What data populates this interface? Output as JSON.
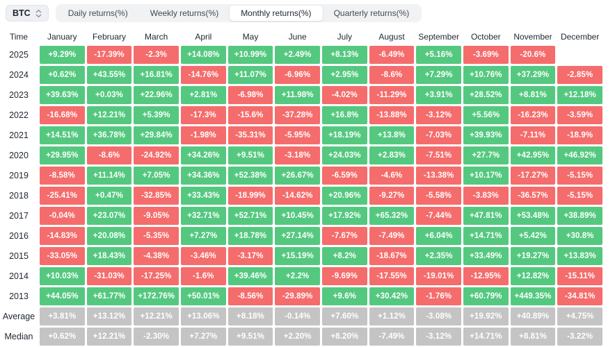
{
  "colors": {
    "positive": "#55c880",
    "negative": "#f56c6c",
    "neutral": "#c4c4c4",
    "cell_text": "#ffffff",
    "text_dark": "#1e2631",
    "tab_text": "#424a54",
    "tab_bar_bg": "#f1f2f4",
    "active_tab_bg": "#ffffff",
    "coin_bg": "#eef0f3",
    "coin_border": "#e2e5ea"
  },
  "toolbar": {
    "coin_selector": {
      "label": "BTC",
      "icon": "up-down-chevron-icon"
    },
    "tabs": [
      {
        "label": "Daily returns(%)",
        "active": false
      },
      {
        "label": "Weekly returns(%)",
        "active": false
      },
      {
        "label": "Monthly returns(%)",
        "active": true
      },
      {
        "label": "Quarterly returns(%)",
        "active": false
      }
    ]
  },
  "table": {
    "time_header": "Time",
    "month_headers": [
      "January",
      "February",
      "March",
      "April",
      "May",
      "June",
      "July",
      "August",
      "September",
      "October",
      "November",
      "December"
    ],
    "rows": [
      {
        "label": "2025",
        "type": "year",
        "values": [
          "+9.29%",
          "-17.39%",
          "-2.3%",
          "+14.08%",
          "+10.99%",
          "+2.49%",
          "+8.13%",
          "-6.49%",
          "+5.16%",
          "-3.69%",
          "-20.6%",
          null
        ]
      },
      {
        "label": "2024",
        "type": "year",
        "values": [
          "+0.62%",
          "+43.55%",
          "+16.81%",
          "-14.76%",
          "+11.07%",
          "-6.96%",
          "+2.95%",
          "-8.6%",
          "+7.29%",
          "+10.76%",
          "+37.29%",
          "-2.85%"
        ]
      },
      {
        "label": "2023",
        "type": "year",
        "values": [
          "+39.63%",
          "+0.03%",
          "+22.96%",
          "+2.81%",
          "-6.98%",
          "+11.98%",
          "-4.02%",
          "-11.29%",
          "+3.91%",
          "+28.52%",
          "+8.81%",
          "+12.18%"
        ]
      },
      {
        "label": "2022",
        "type": "year",
        "values": [
          "-16.68%",
          "+12.21%",
          "+5.39%",
          "-17.3%",
          "-15.6%",
          "-37.28%",
          "+16.8%",
          "-13.88%",
          "-3.12%",
          "+5.56%",
          "-16.23%",
          "-3.59%"
        ]
      },
      {
        "label": "2021",
        "type": "year",
        "values": [
          "+14.51%",
          "+36.78%",
          "+29.84%",
          "-1.98%",
          "-35.31%",
          "-5.95%",
          "+18.19%",
          "+13.8%",
          "-7.03%",
          "+39.93%",
          "-7.11%",
          "-18.9%"
        ]
      },
      {
        "label": "2020",
        "type": "year",
        "values": [
          "+29.95%",
          "-8.6%",
          "-24.92%",
          "+34.26%",
          "+9.51%",
          "-3.18%",
          "+24.03%",
          "+2.83%",
          "-7.51%",
          "+27.7%",
          "+42.95%",
          "+46.92%"
        ]
      },
      {
        "label": "2019",
        "type": "year",
        "values": [
          "-8.58%",
          "+11.14%",
          "+7.05%",
          "+34.36%",
          "+52.38%",
          "+26.67%",
          "-6.59%",
          "-4.6%",
          "-13.38%",
          "+10.17%",
          "-17.27%",
          "-5.15%"
        ]
      },
      {
        "label": "2018",
        "type": "year",
        "values": [
          "-25.41%",
          "+0.47%",
          "-32.85%",
          "+33.43%",
          "-18.99%",
          "-14.62%",
          "+20.96%",
          "-9.27%",
          "-5.58%",
          "-3.83%",
          "-36.57%",
          "-5.15%"
        ]
      },
      {
        "label": "2017",
        "type": "year",
        "values": [
          "-0.04%",
          "+23.07%",
          "-9.05%",
          "+32.71%",
          "+52.71%",
          "+10.45%",
          "+17.92%",
          "+65.32%",
          "-7.44%",
          "+47.81%",
          "+53.48%",
          "+38.89%"
        ]
      },
      {
        "label": "2016",
        "type": "year",
        "values": [
          "-14.83%",
          "+20.08%",
          "-5.35%",
          "+7.27%",
          "+18.78%",
          "+27.14%",
          "-7.67%",
          "-7.49%",
          "+6.04%",
          "+14.71%",
          "+5.42%",
          "+30.8%"
        ]
      },
      {
        "label": "2015",
        "type": "year",
        "values": [
          "-33.05%",
          "+18.43%",
          "-4.38%",
          "-3.46%",
          "-3.17%",
          "+15.19%",
          "+8.2%",
          "-18.67%",
          "+2.35%",
          "+33.49%",
          "+19.27%",
          "+13.83%"
        ]
      },
      {
        "label": "2014",
        "type": "year",
        "values": [
          "+10.03%",
          "-31.03%",
          "-17.25%",
          "-1.6%",
          "+39.46%",
          "+2.2%",
          "-9.69%",
          "-17.55%",
          "-19.01%",
          "-12.95%",
          "+12.82%",
          "-15.11%"
        ]
      },
      {
        "label": "2013",
        "type": "year",
        "values": [
          "+44.05%",
          "+61.77%",
          "+172.76%",
          "+50.01%",
          "-8.56%",
          "-29.89%",
          "+9.6%",
          "+30.42%",
          "-1.76%",
          "+60.79%",
          "+449.35%",
          "-34.81%"
        ]
      },
      {
        "label": "Average",
        "type": "summary",
        "values": [
          "+3.81%",
          "+13.12%",
          "+12.21%",
          "+13.06%",
          "+8.18%",
          "-0.14%",
          "+7.60%",
          "+1.12%",
          "-3.08%",
          "+19.92%",
          "+40.89%",
          "+4.75%"
        ]
      },
      {
        "label": "Median",
        "type": "summary",
        "values": [
          "+0.62%",
          "+12.21%",
          "-2.30%",
          "+7.27%",
          "+9.51%",
          "+2.20%",
          "+8.20%",
          "-7.49%",
          "-3.12%",
          "+14.71%",
          "+8.81%",
          "-3.22%"
        ]
      }
    ]
  },
  "chart_data": {
    "type": "heatmap",
    "title": "BTC Monthly returns(%)",
    "x": [
      "January",
      "February",
      "March",
      "April",
      "May",
      "June",
      "July",
      "August",
      "September",
      "October",
      "November",
      "December"
    ],
    "y": [
      "2025",
      "2024",
      "2023",
      "2022",
      "2021",
      "2020",
      "2019",
      "2018",
      "2017",
      "2016",
      "2015",
      "2014",
      "2013",
      "Average",
      "Median"
    ],
    "values": [
      [
        9.29,
        -17.39,
        -2.3,
        14.08,
        10.99,
        2.49,
        8.13,
        -6.49,
        5.16,
        -3.69,
        -20.6,
        null
      ],
      [
        0.62,
        43.55,
        16.81,
        -14.76,
        11.07,
        -6.96,
        2.95,
        -8.6,
        7.29,
        10.76,
        37.29,
        -2.85
      ],
      [
        39.63,
        0.03,
        22.96,
        2.81,
        -6.98,
        11.98,
        -4.02,
        -11.29,
        3.91,
        28.52,
        8.81,
        12.18
      ],
      [
        -16.68,
        12.21,
        5.39,
        -17.3,
        -15.6,
        -37.28,
        16.8,
        -13.88,
        -3.12,
        5.56,
        -16.23,
        -3.59
      ],
      [
        14.51,
        36.78,
        29.84,
        -1.98,
        -35.31,
        -5.95,
        18.19,
        13.8,
        -7.03,
        39.93,
        -7.11,
        -18.9
      ],
      [
        29.95,
        -8.6,
        -24.92,
        34.26,
        9.51,
        -3.18,
        24.03,
        2.83,
        -7.51,
        27.7,
        42.95,
        46.92
      ],
      [
        -8.58,
        11.14,
        7.05,
        34.36,
        52.38,
        26.67,
        -6.59,
        -4.6,
        -13.38,
        10.17,
        -17.27,
        -5.15
      ],
      [
        -25.41,
        0.47,
        -32.85,
        33.43,
        -18.99,
        -14.62,
        20.96,
        -9.27,
        -5.58,
        -3.83,
        -36.57,
        -5.15
      ],
      [
        -0.04,
        23.07,
        -9.05,
        32.71,
        52.71,
        10.45,
        17.92,
        65.32,
        -7.44,
        47.81,
        53.48,
        38.89
      ],
      [
        -14.83,
        20.08,
        -5.35,
        7.27,
        18.78,
        27.14,
        -7.67,
        -7.49,
        6.04,
        14.71,
        5.42,
        30.8
      ],
      [
        -33.05,
        18.43,
        -4.38,
        -3.46,
        -3.17,
        15.19,
        8.2,
        -18.67,
        2.35,
        33.49,
        19.27,
        13.83
      ],
      [
        10.03,
        -31.03,
        -17.25,
        -1.6,
        39.46,
        2.2,
        -9.69,
        -17.55,
        -19.01,
        -12.95,
        12.82,
        -15.11
      ],
      [
        44.05,
        61.77,
        172.76,
        50.01,
        -8.56,
        -29.89,
        9.6,
        30.42,
        -1.76,
        60.79,
        449.35,
        -34.81
      ],
      [
        3.81,
        13.12,
        12.21,
        13.06,
        8.18,
        -0.14,
        7.6,
        1.12,
        -3.08,
        19.92,
        40.89,
        4.75
      ],
      [
        0.62,
        12.21,
        -2.3,
        7.27,
        9.51,
        2.2,
        8.2,
        -7.49,
        -3.12,
        14.71,
        8.81,
        -3.22
      ]
    ],
    "legend": "none",
    "color_rule": "positive=green, negative=red, summary rows (Average/Median)=gray, missing=blank"
  }
}
